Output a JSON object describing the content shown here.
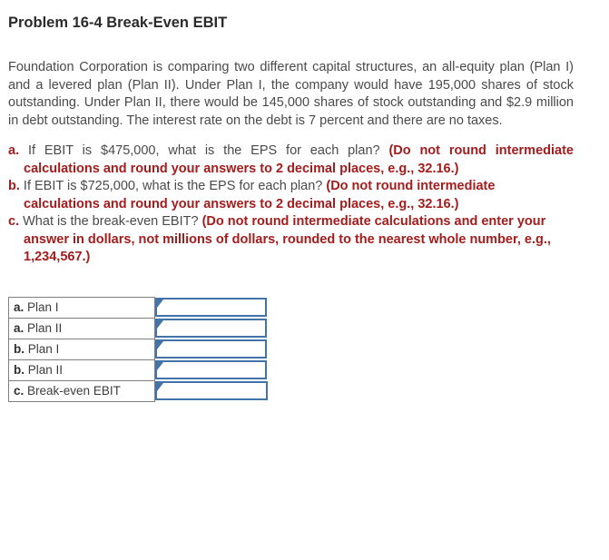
{
  "title": "Problem 16-4 Break-Even EBIT",
  "intro": "Foundation Corporation is comparing two different capital structures, an all-equity plan (Plan I) and a levered plan (Plan II). Under Plan I, the company would have 195,000 shares of stock outstanding. Under Plan II, there would be 145,000 shares of stock outstanding and $2.9 million in debt outstanding. The interest rate on the debt is 7 percent and there are no taxes.",
  "questions": [
    {
      "marker": "a.",
      "text": "If EBIT is $475,000, what is the EPS for each plan? ",
      "instruction": "(Do not round intermediate calculations and round your answers to 2 decimal places, e.g., 32.16.)"
    },
    {
      "marker": "b.",
      "text": "If EBIT is $725,000, what is the EPS for each plan? ",
      "instruction": "(Do not round intermediate calculations and round your answers to 2 decimal places, e.g., 32.16.)"
    },
    {
      "marker": "c.",
      "text": "What is the break-even EBIT? ",
      "instruction": "(Do not round intermediate calculations and enter your answer in dollars, not millions of dollars, rounded to the nearest whole number, e.g., 1,234,567.)"
    }
  ],
  "answer_table": {
    "rows": [
      {
        "marker": "a.",
        "label": "Plan I",
        "value": ""
      },
      {
        "marker": "a.",
        "label": "Plan II",
        "value": ""
      },
      {
        "marker": "b.",
        "label": "Plan I",
        "value": ""
      },
      {
        "marker": "b.",
        "label": "Plan II",
        "value": ""
      },
      {
        "marker": "c.",
        "label": "Break-even EBIT",
        "value": ""
      }
    ]
  },
  "colors": {
    "instruction_red": "#a41c1c",
    "input_border_blue": "#4374a7",
    "label_border_gray": "#7f7f7f",
    "body_text": "#4a4a4a",
    "title_text": "#2b2b2b",
    "background": "#ffffff"
  }
}
